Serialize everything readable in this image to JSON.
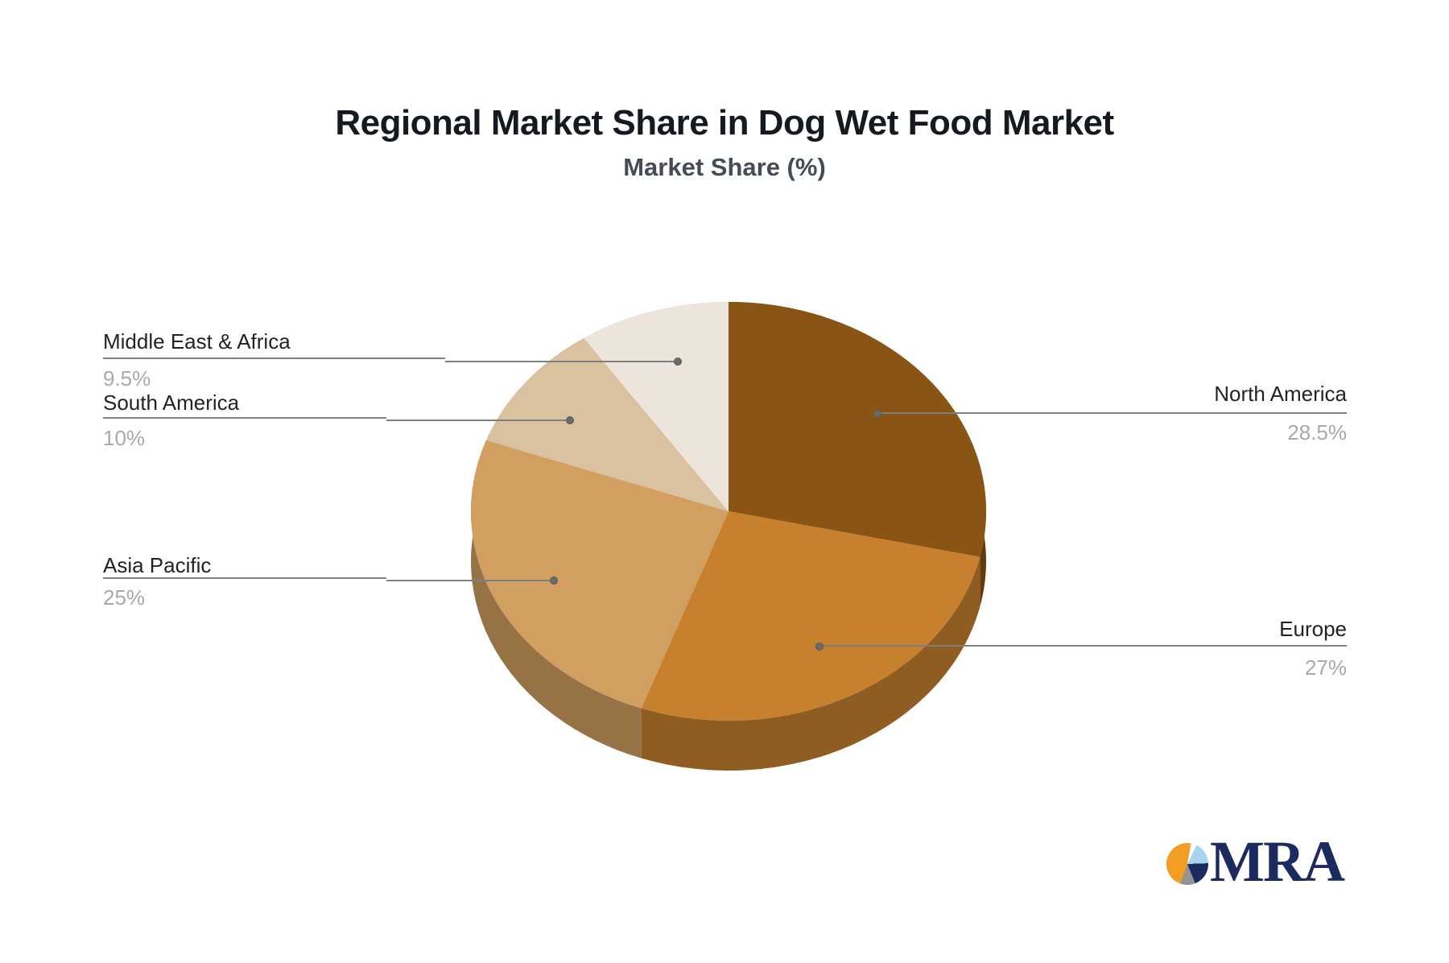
{
  "header": {
    "title": "Regional Market Share in Dog Wet Food Market",
    "subtitle": "Market Share (%)"
  },
  "chart_data": {
    "type": "pie",
    "title": "Regional Market Share in Dog Wet Food Market",
    "subtitle": "Market Share (%)",
    "unit": "%",
    "style": "3d",
    "start_angle": "12-o-clock",
    "direction": "clockwise",
    "legend": "none",
    "label_style": "external labels with leader lines and percentage values",
    "slices": [
      {
        "label": "North America",
        "value": 28.5,
        "display_value": "28.5%",
        "color": "#8A5414"
      },
      {
        "label": "Europe",
        "value": 27,
        "display_value": "27%",
        "color": "#C7812E"
      },
      {
        "label": "Asia Pacific",
        "value": 25,
        "display_value": "25%",
        "color": "#D19F60"
      },
      {
        "label": "South America",
        "value": 10,
        "display_value": "10%",
        "color": "#DAC1A0"
      },
      {
        "label": "Middle East & Africa",
        "value": 9.5,
        "display_value": "9.5%",
        "color": "#EDE5DB"
      }
    ]
  },
  "colors": {
    "background": "#ffffff",
    "title_text": "#151a21",
    "subtitle_text": "#454c57",
    "label_text": "#1f2228",
    "value_text": "#a6a9ae",
    "leader_line": "#7f7f7f",
    "leader_dot": "#6a6a6a",
    "logo_navy": "#1b2b5e",
    "logo_orange": "#F29D26",
    "logo_light_blue": "#A9D4F0",
    "logo_gray": "#97948F"
  },
  "logo": {
    "text": "MRA"
  }
}
